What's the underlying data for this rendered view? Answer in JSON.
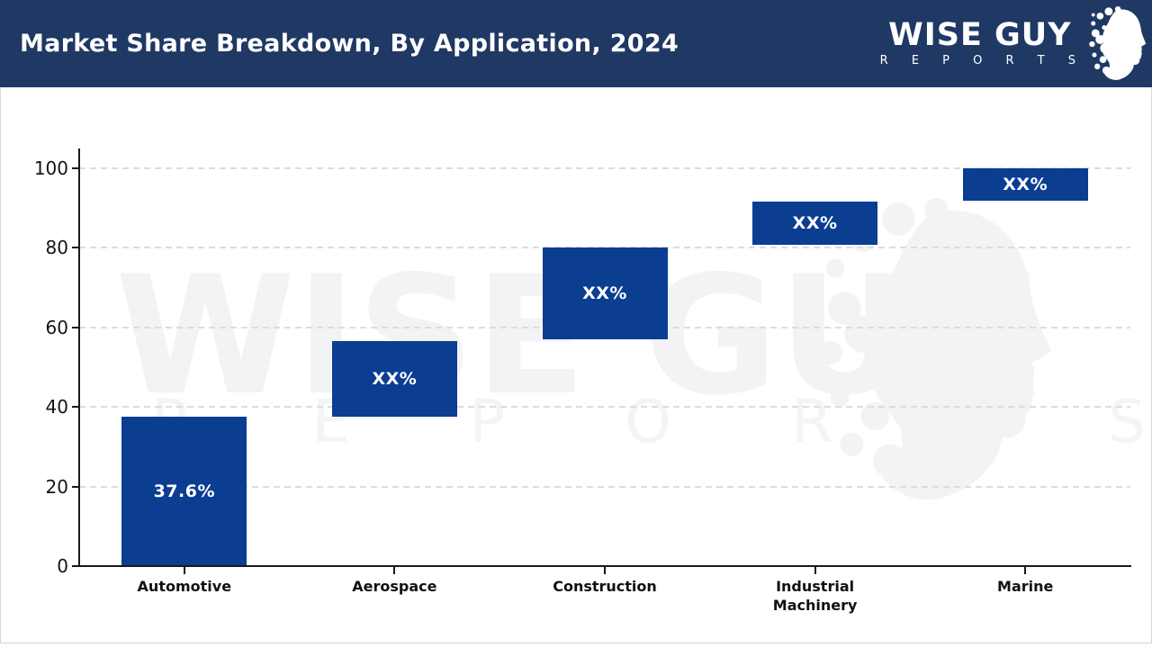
{
  "header": {
    "title": "Market Share Breakdown, By Application, 2024",
    "logo": {
      "primary": "WISE GUY",
      "secondary": "R E P O R T S"
    }
  },
  "watermark": {
    "primary": "WISE GUY",
    "secondary": "R E P O R T S"
  },
  "chart_data": {
    "type": "bar",
    "subtype": "waterfall",
    "title": "Market Share Breakdown, By Application, 2024",
    "categories": [
      "Automotive",
      "Aerospace",
      "Construction",
      "Industrial Machinery",
      "Marine"
    ],
    "segments": [
      {
        "category": "Automotive",
        "start": 0,
        "end": 37.6,
        "label": "37.6%"
      },
      {
        "category": "Aerospace",
        "start": 37.6,
        "end": 56.5,
        "label": "XX%"
      },
      {
        "category": "Construction",
        "start": 56.9,
        "end": 80.0,
        "label": "XX%"
      },
      {
        "category": "Industrial Machinery",
        "start": 80.6,
        "end": 91.5,
        "label": "XX%"
      },
      {
        "category": "Marine",
        "start": 91.7,
        "end": 100,
        "label": "XX%"
      }
    ],
    "bar_labels": [
      "37.6%",
      "XX%",
      "XX%",
      "XX%",
      "XX%"
    ],
    "xlabel": "",
    "ylabel": "",
    "yticks": [
      0,
      20,
      40,
      60,
      80,
      100
    ],
    "ylim": [
      0,
      105
    ],
    "grid": "horizontal-dashed",
    "legend": "none",
    "bar_color": "#0b3d91",
    "value_label_color": "#ffffff"
  },
  "colors": {
    "header_bg": "#1f3864",
    "bar": "#0b3d91",
    "gridline": "#dcdcdc",
    "axis": "#1a1a1a",
    "watermark": "#f2f3f5"
  }
}
